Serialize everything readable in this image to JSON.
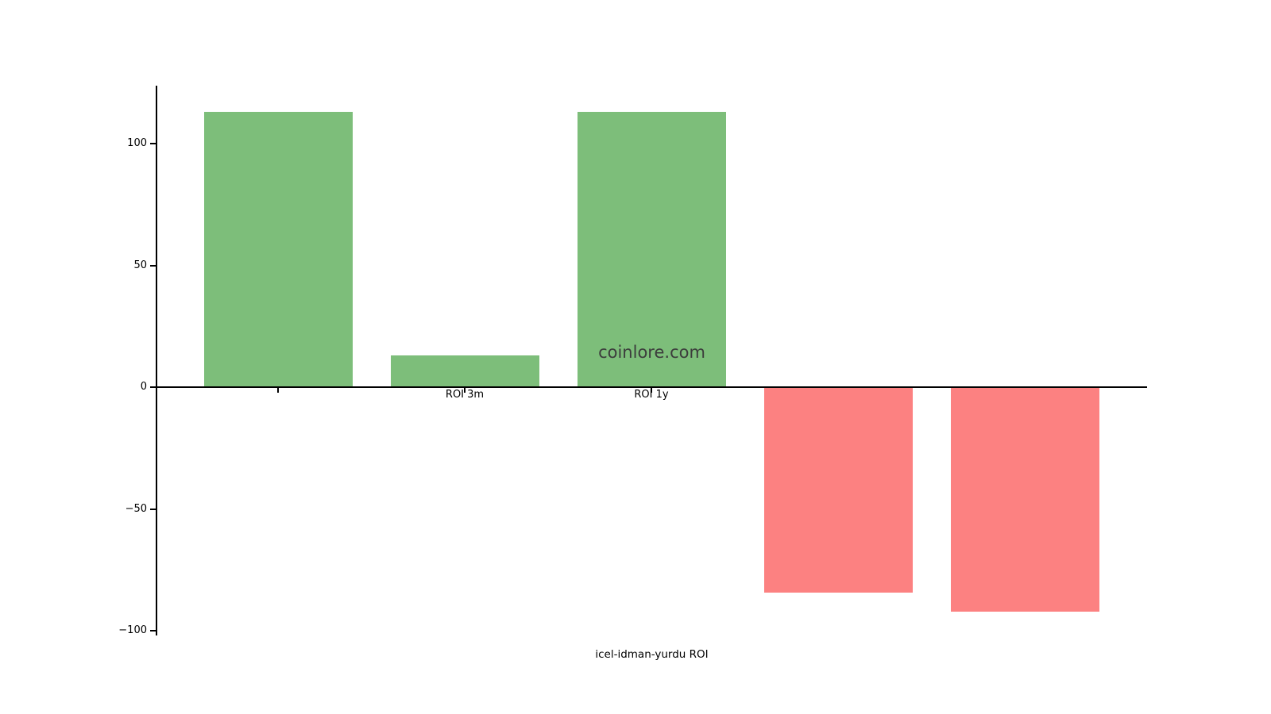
{
  "watermark": {
    "text": "coinlore.com"
  },
  "chart_data": {
    "type": "bar",
    "title": "icel-idman-yurdu ROI",
    "xlabel": "",
    "ylabel": "",
    "categories": [
      "",
      "ROI 3m",
      "ROI 1y",
      "",
      ""
    ],
    "values": [
      113,
      13,
      113,
      -84,
      -92
    ],
    "bar_colors_semantic": [
      "positive",
      "positive",
      "positive",
      "negative",
      "negative"
    ],
    "y_ticks": [
      100,
      50,
      0,
      -50,
      -100
    ],
    "y_tick_labels": [
      "100",
      "50",
      "0",
      "−50",
      "−100"
    ],
    "ylim": [
      -102,
      123
    ],
    "grid": false,
    "legend_position": "none",
    "colors": {
      "positive": "#7dbe7a",
      "negative": "#fc8181",
      "axis": "#000000",
      "tick_text": "#000000",
      "watermark_text": "#3c3c3c",
      "background": "#ffffff"
    }
  }
}
